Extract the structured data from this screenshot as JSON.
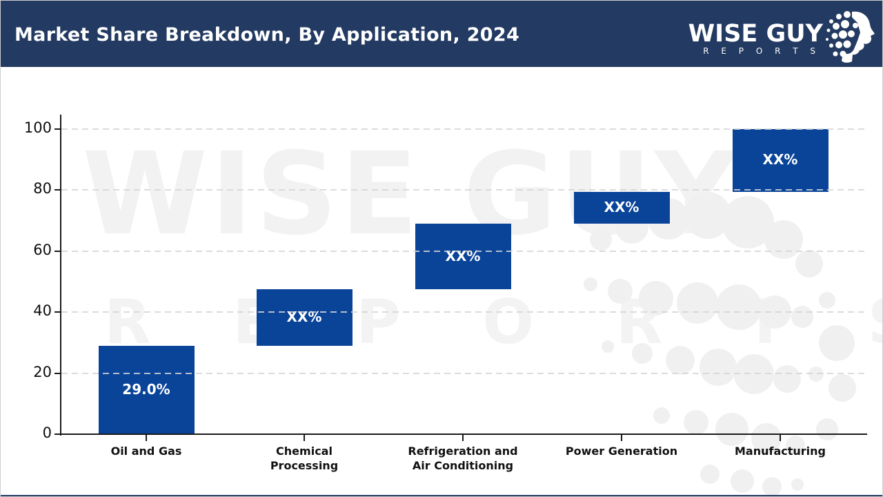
{
  "header": {
    "title": "Market Share Breakdown, By Application, 2024",
    "logo": {
      "brand": "WISE GUY",
      "sub": "R E P O R T S",
      "icon": "dotted-head-profile"
    }
  },
  "watermark": {
    "line1": "WISE GUY",
    "line2": "R E P O R T S"
  },
  "colors": {
    "header_bg": "#233a62",
    "bar_fill": "#0a4499",
    "bar_label_text": "#ffffff",
    "gridline": "#d5d5d5",
    "axis": "#1a1a1a",
    "watermark": "#f2f2f2",
    "page_border": "#cfcfcf"
  },
  "chart_data": {
    "type": "bar",
    "subtype": "waterfall-cumulative",
    "title": "Market Share Breakdown, By Application, 2024",
    "xlabel": "",
    "ylabel": "",
    "ylim": [
      0,
      105
    ],
    "yticks": [
      0,
      20,
      40,
      60,
      80,
      100
    ],
    "grid": "horizontal dashed, drawn over bars",
    "legend": "none",
    "bar_color": "#0a4499",
    "categories": [
      "Oil and Gas",
      "Chemical Processing",
      "Refrigeration and Air Conditioning",
      "Power Generation",
      "Manufacturing"
    ],
    "segments": [
      {
        "category": "Oil and Gas",
        "display_lines": [
          "Oil and Gas"
        ],
        "start": 0,
        "end": 29,
        "value": 29.0,
        "value_label": "29.0%"
      },
      {
        "category": "Chemical Processing",
        "display_lines": [
          "Chemical",
          "Processing"
        ],
        "start": 29,
        "end": 47.5,
        "value": 18.5,
        "value_label": "XX%"
      },
      {
        "category": "Refrigeration and Air Conditioning",
        "display_lines": [
          "Refrigeration and",
          "Air Conditioning"
        ],
        "start": 47.5,
        "end": 69,
        "value": 21.5,
        "value_label": "XX%"
      },
      {
        "category": "Power Generation",
        "display_lines": [
          "Power Generation"
        ],
        "start": 69,
        "end": 79.5,
        "value": 10.5,
        "value_label": "XX%"
      },
      {
        "category": "Manufacturing",
        "display_lines": [
          "Manufacturing"
        ],
        "start": 79.5,
        "end": 100,
        "value": 20.5,
        "value_label": "XX%"
      }
    ]
  }
}
